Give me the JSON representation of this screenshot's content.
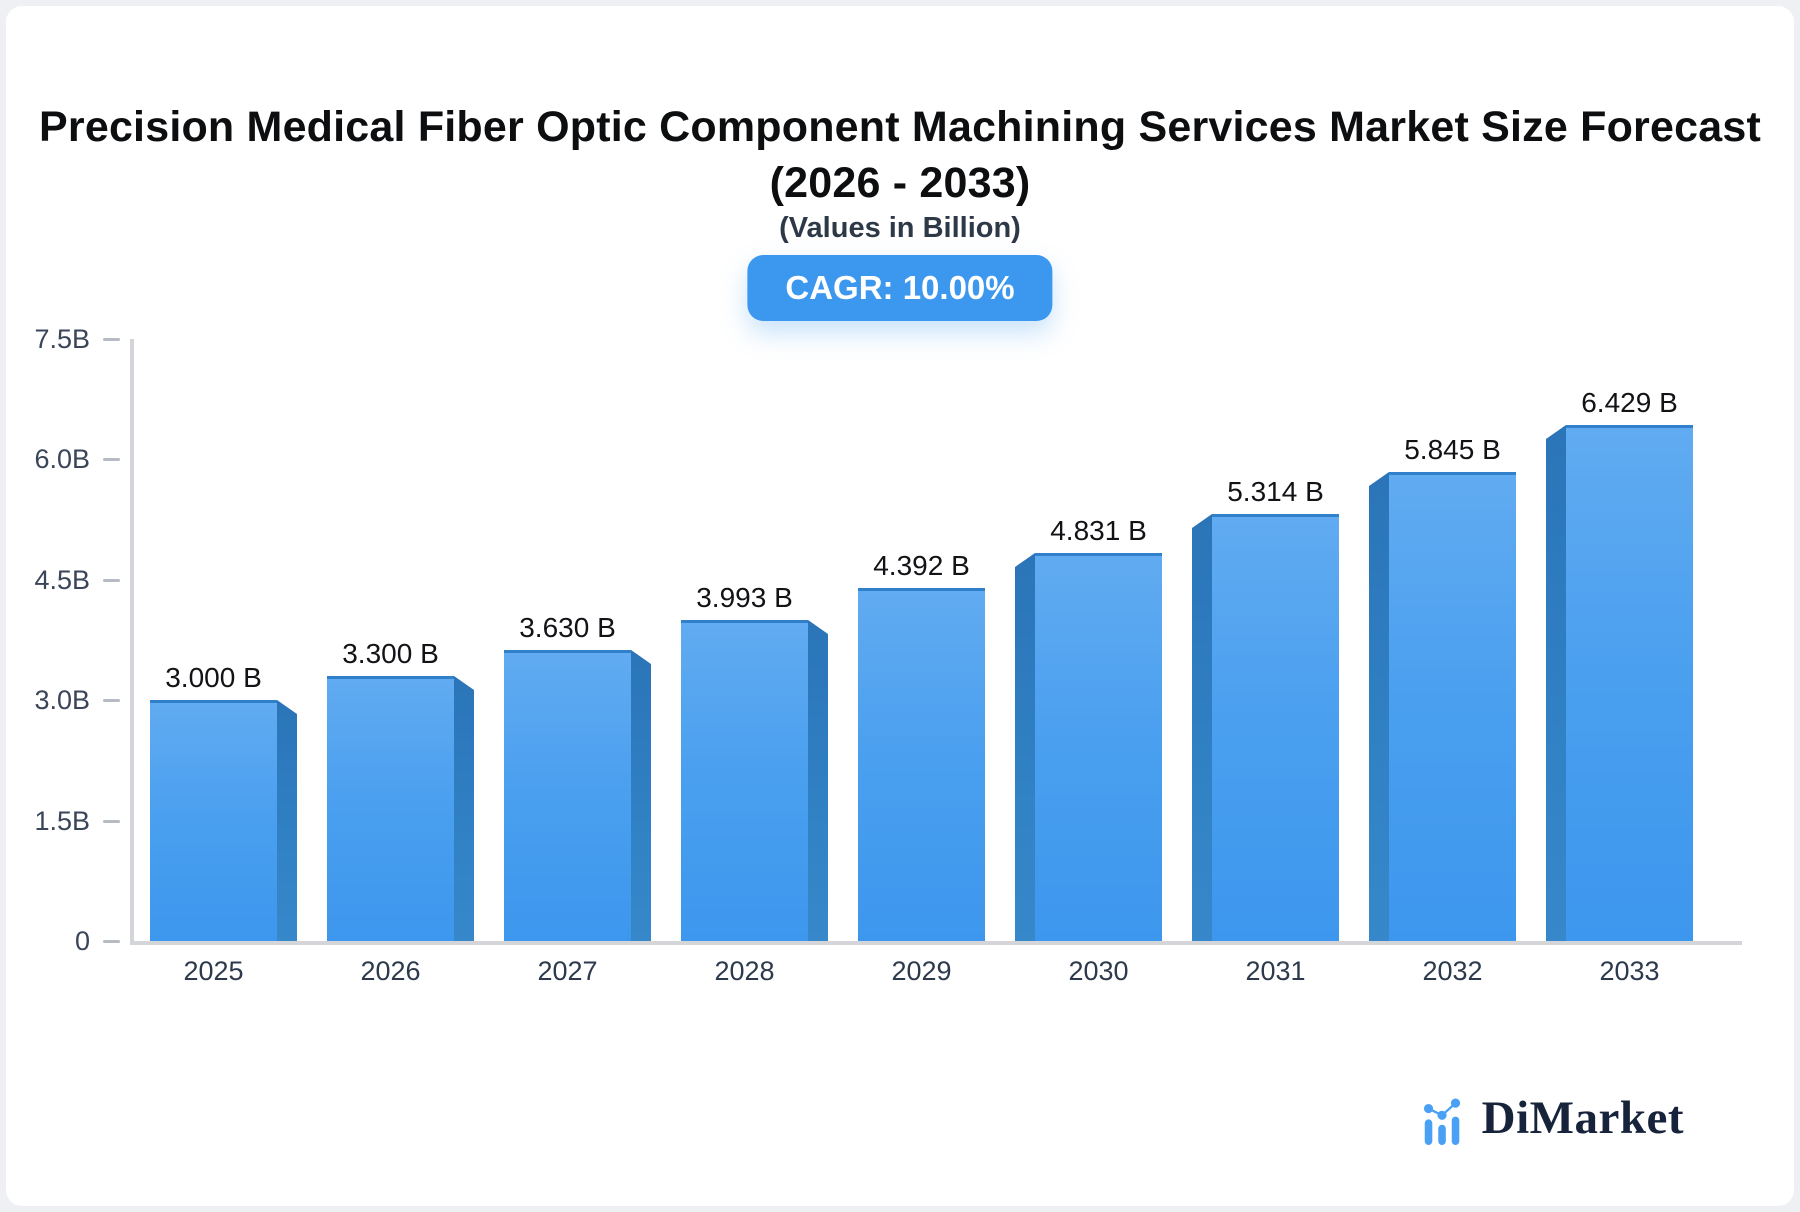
{
  "header": {
    "title_line1": "Precision Medical Fiber Optic Component Machining Services Market Size Forecast",
    "title_line2": "(2026 - 2033)",
    "subtitle": "(Values in Billion)",
    "cagr_label": "CAGR: 10.00%"
  },
  "chart_data": {
    "type": "bar",
    "title": "Precision Medical Fiber Optic Component Machining Services Market Size Forecast (2026 - 2033)",
    "subtitle": "(Values in Billion)",
    "cagr": "10.00%",
    "unit": "Billion",
    "categories": [
      "2025",
      "2026",
      "2027",
      "2028",
      "2029",
      "2030",
      "2031",
      "2032",
      "2033"
    ],
    "values": [
      3.0,
      3.3,
      3.63,
      3.993,
      4.392,
      4.831,
      5.314,
      5.845,
      6.429
    ],
    "bar_labels": [
      "3.000 B",
      "3.300 B",
      "3.630 B",
      "3.993 B",
      "4.392 B",
      "4.831 B",
      "5.314 B",
      "5.845 B",
      "6.429 B"
    ],
    "xlabel": "",
    "ylabel": "",
    "ylim": [
      0,
      7.5
    ],
    "yticks": [
      {
        "value": 0,
        "label": "0"
      },
      {
        "value": 1.5,
        "label": "1.5B"
      },
      {
        "value": 3,
        "label": "3.0B"
      },
      {
        "value": 4.5,
        "label": "4.5B"
      },
      {
        "value": 6,
        "label": "6.0B"
      },
      {
        "value": 7.5,
        "label": "7.5B"
      }
    ],
    "grid": "off",
    "legend": "none",
    "bar_color": "#4DA2EF",
    "bar_side_color": "#2E79BE"
  },
  "branding": {
    "logo_text": "DiMarket",
    "logo_icon": "mini-bar-chart-icon",
    "logo_icon_color": "#4AA0F4",
    "logo_text_color": "#16233B"
  },
  "colors": {
    "badge_bg": "#3B98EE",
    "badge_text": "#FFFFFF",
    "axis_line": "#D3D5D9",
    "tick": "#B6BAC1",
    "axis_label": "#3A4559",
    "year_label": "#2D3A4D",
    "value_label": "#121316",
    "title": "#0D0E10",
    "subtitle": "#2E3947",
    "page_bg": "#EEF0F3",
    "card_bg": "#FFFFFF"
  }
}
